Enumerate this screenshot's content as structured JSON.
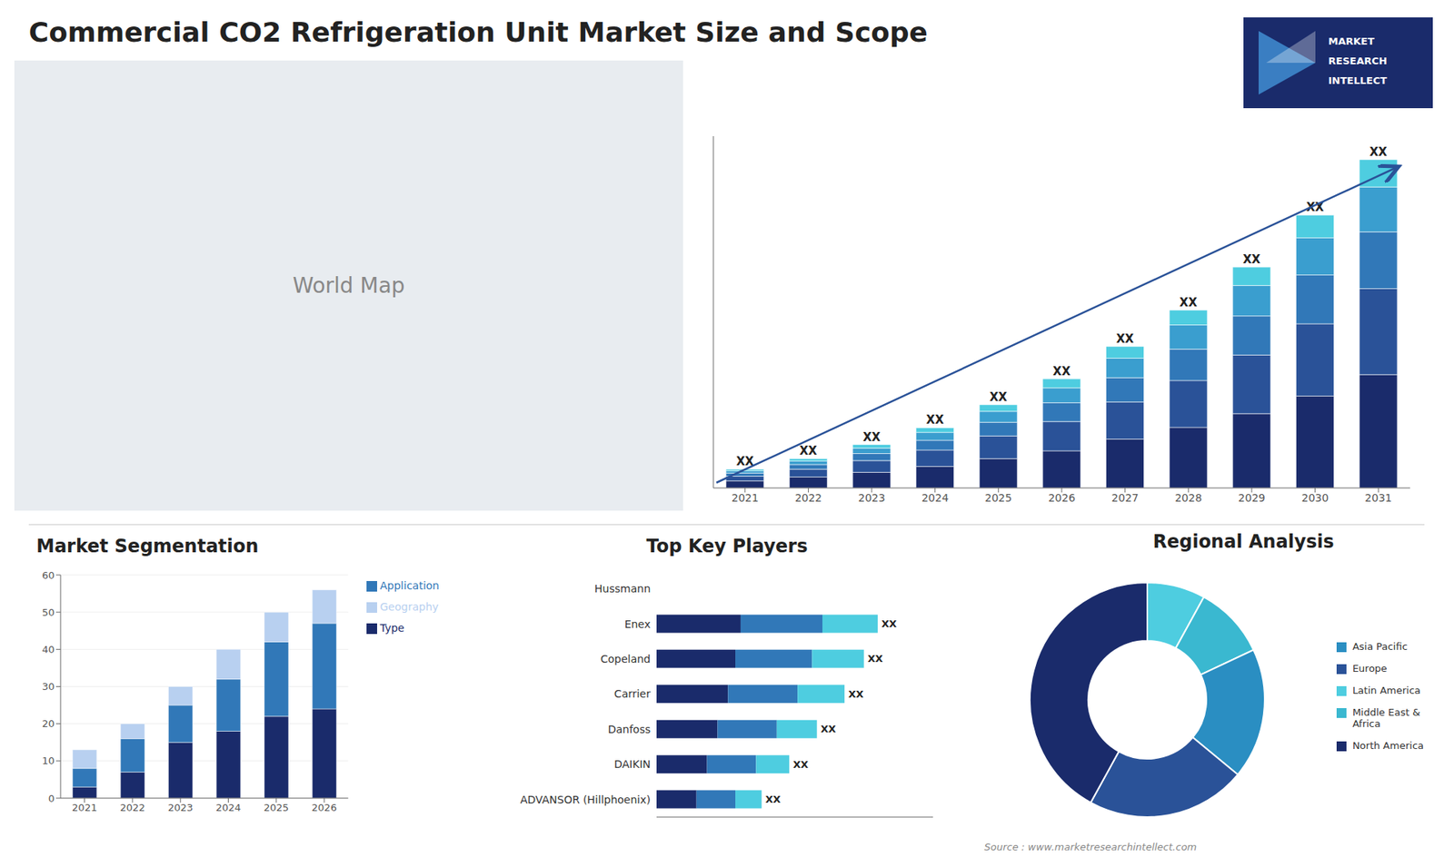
{
  "title": "Commercial CO2 Refrigeration Unit Market Size and Scope",
  "annotations": [
    "World Map",
    "MARKET",
    "RESEARCH",
    "INTELLECT",
    "Source : www.marketresearchintellect.com"
  ],
  "chart_data": [
    {
      "type": "bar",
      "stacked": true,
      "categories": [
        "2021",
        "2022",
        "2023",
        "2024",
        "2025",
        "2026",
        "2027",
        "2028",
        "2029",
        "2030",
        "2031"
      ],
      "series": [
        {
          "color": "#1a2b6b",
          "values": [
            1.8,
            2.8,
            4.0,
            5.5,
            7.5,
            9.5,
            12.5,
            15.5,
            19.0,
            23.5,
            29.0
          ]
        },
        {
          "color": "#2a5298",
          "values": [
            1.2,
            2.0,
            3.0,
            4.2,
            5.8,
            7.5,
            9.5,
            12.0,
            15.0,
            18.5,
            22.0
          ]
        },
        {
          "color": "#3178b8",
          "values": [
            0.8,
            1.2,
            1.8,
            2.5,
            3.5,
            4.8,
            6.2,
            8.0,
            10.0,
            12.5,
            14.5
          ]
        },
        {
          "color": "#3a9ecf",
          "values": [
            0.6,
            0.9,
            1.4,
            2.0,
            2.8,
            3.8,
            5.0,
            6.2,
            7.8,
            9.5,
            11.5
          ]
        },
        {
          "color": "#4ecde0",
          "values": [
            0.4,
            0.6,
            0.9,
            1.2,
            1.7,
            2.3,
            3.0,
            3.8,
            4.7,
            5.8,
            7.0
          ]
        }
      ],
      "ylim": [
        0,
        90
      ],
      "tick_labels": "x",
      "grid": false,
      "value_labels": [
        "XX",
        "XX",
        "XX",
        "XX",
        "XX",
        "XX",
        "XX",
        "XX",
        "XX",
        "XX",
        "XX"
      ]
    },
    {
      "type": "bar",
      "title": "Market Segmentation",
      "stacked": true,
      "categories": [
        "2021",
        "2022",
        "2023",
        "2024",
        "2025",
        "2026"
      ],
      "series": [
        {
          "name": "Type",
          "color": "#1a2b6b",
          "values": [
            3,
            7,
            15,
            18,
            22,
            24
          ]
        },
        {
          "name": "Application",
          "color": "#3178b8",
          "values": [
            5,
            9,
            10,
            14,
            20,
            23
          ]
        },
        {
          "name": "Geography",
          "color": "#b8d0f0",
          "values": [
            5,
            4,
            5,
            8,
            8,
            9
          ]
        }
      ],
      "ylim": [
        0,
        60
      ],
      "yticks": [
        0,
        10,
        20,
        30,
        40,
        50,
        60
      ],
      "grid": true,
      "legend": "right"
    },
    {
      "type": "bar",
      "title": "Top Key Players",
      "orientation": "horizontal",
      "stacked": true,
      "categories": [
        "Hussmann",
        "Enex",
        "Copeland",
        "Carrier",
        "Danfoss",
        "DAIKIN",
        "ADVANSOR (Hillphoenix)"
      ],
      "series": [
        {
          "color": "#1a2b6b",
          "values": [
            0,
            30.4,
            28.5,
            25.84,
            22.04,
            18.24,
            14.44
          ]
        },
        {
          "color": "#3178b8",
          "values": [
            0,
            29.6,
            27.75,
            25.16,
            21.46,
            17.76,
            14.06
          ]
        },
        {
          "color": "#4ecde0",
          "values": [
            0,
            20.0,
            18.75,
            17.0,
            14.5,
            12.0,
            9.5
          ]
        }
      ],
      "xlim": [
        0,
        100
      ],
      "tick_labels": "y",
      "grid": false,
      "value_labels": [
        null,
        "XX",
        "XX",
        "XX",
        "XX",
        "XX",
        "XX"
      ]
    },
    {
      "type": "pie",
      "title": "Regional Analysis",
      "categories": [
        "Latin America",
        "Middle East &\nAfrica",
        "Asia Pacific",
        "Europe",
        "North America"
      ],
      "values": [
        8,
        10,
        18,
        22,
        42
      ],
      "colors": [
        "#4ecde0",
        "#3ab8d0",
        "#2a8ec2",
        "#2a5298",
        "#1a2b6b"
      ],
      "legend": "right"
    }
  ]
}
